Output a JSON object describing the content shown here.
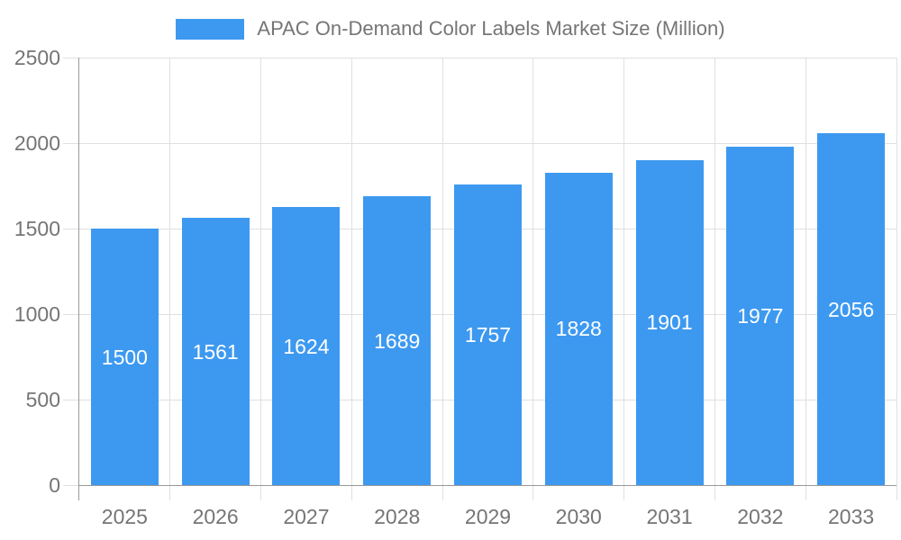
{
  "legend": {
    "label": "APAC On-Demand Color Labels Market Size (Million)"
  },
  "chart_data": {
    "type": "bar",
    "title": "APAC On-Demand Color Labels Market Size (Million)",
    "series_name": "APAC On-Demand Color Labels Market Size (Million)",
    "categories": [
      "2025",
      "2026",
      "2027",
      "2028",
      "2029",
      "2030",
      "2031",
      "2032",
      "2033"
    ],
    "values": [
      1500,
      1561,
      1624,
      1689,
      1757,
      1828,
      1901,
      1977,
      2056
    ],
    "xlabel": "",
    "ylabel": "",
    "ylim": [
      0,
      2500
    ],
    "yticks": [
      0,
      500,
      1000,
      1500,
      2000,
      2500
    ],
    "grid": true,
    "legend_position": "top",
    "value_labels": "inside-center"
  },
  "colors": {
    "bar": "#3D99F0",
    "text": "#757575",
    "bar_label": "#FFFFFF",
    "gridline": "#E0E0E0",
    "axis": "#999999",
    "background": "#FFFFFF"
  }
}
